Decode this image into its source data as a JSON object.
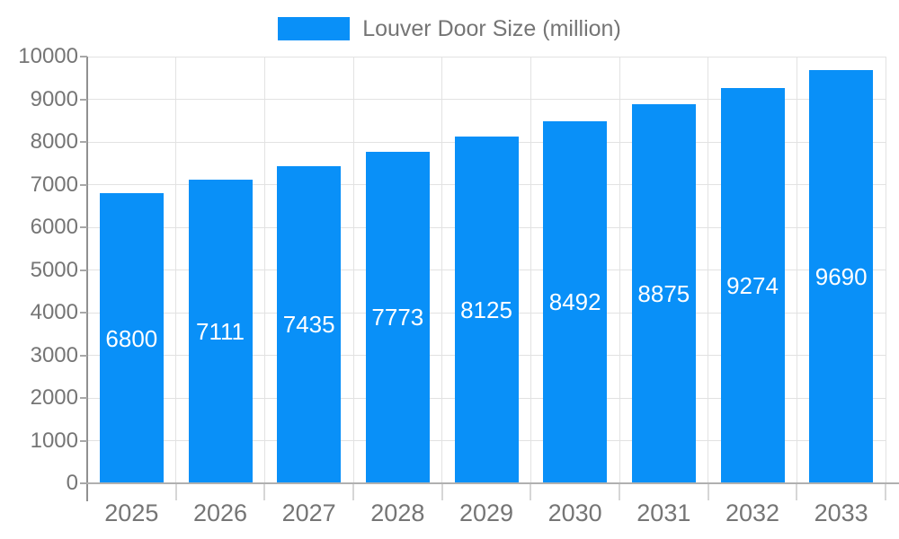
{
  "chart_data": {
    "type": "bar",
    "title": "",
    "legend": "Louver Door Size (million)",
    "legend_position": "top-center",
    "categories": [
      "2025",
      "2026",
      "2027",
      "2028",
      "2029",
      "2030",
      "2031",
      "2032",
      "2033"
    ],
    "values": [
      6800,
      7111,
      7435,
      7773,
      8125,
      8492,
      8875,
      9274,
      9690
    ],
    "series": [
      {
        "name": "Louver Door Size (million)",
        "values": [
          6800,
          7111,
          7435,
          7773,
          8125,
          8492,
          8875,
          9274,
          9690
        ]
      }
    ],
    "xlabel": "",
    "ylabel": "",
    "ylim": [
      0,
      10000
    ],
    "ytick_interval": 1000,
    "y_ticks": [
      "0",
      "1000",
      "2000",
      "3000",
      "4000",
      "5000",
      "6000",
      "7000",
      "8000",
      "9000",
      "10000"
    ],
    "grid": true,
    "data_labels_shown": true,
    "colors": {
      "bar": "#0990f8",
      "data_label": "#ffffff",
      "axis_text": "#757575",
      "legend_text": "#757575",
      "y_axis_line": "#909090",
      "x_axis_line": "#b0b0b0",
      "y_tick": "#a8a8a8",
      "x_tick": "#d6d6d6",
      "gridline": "#e2e2e2",
      "background": "#ffffff"
    }
  }
}
